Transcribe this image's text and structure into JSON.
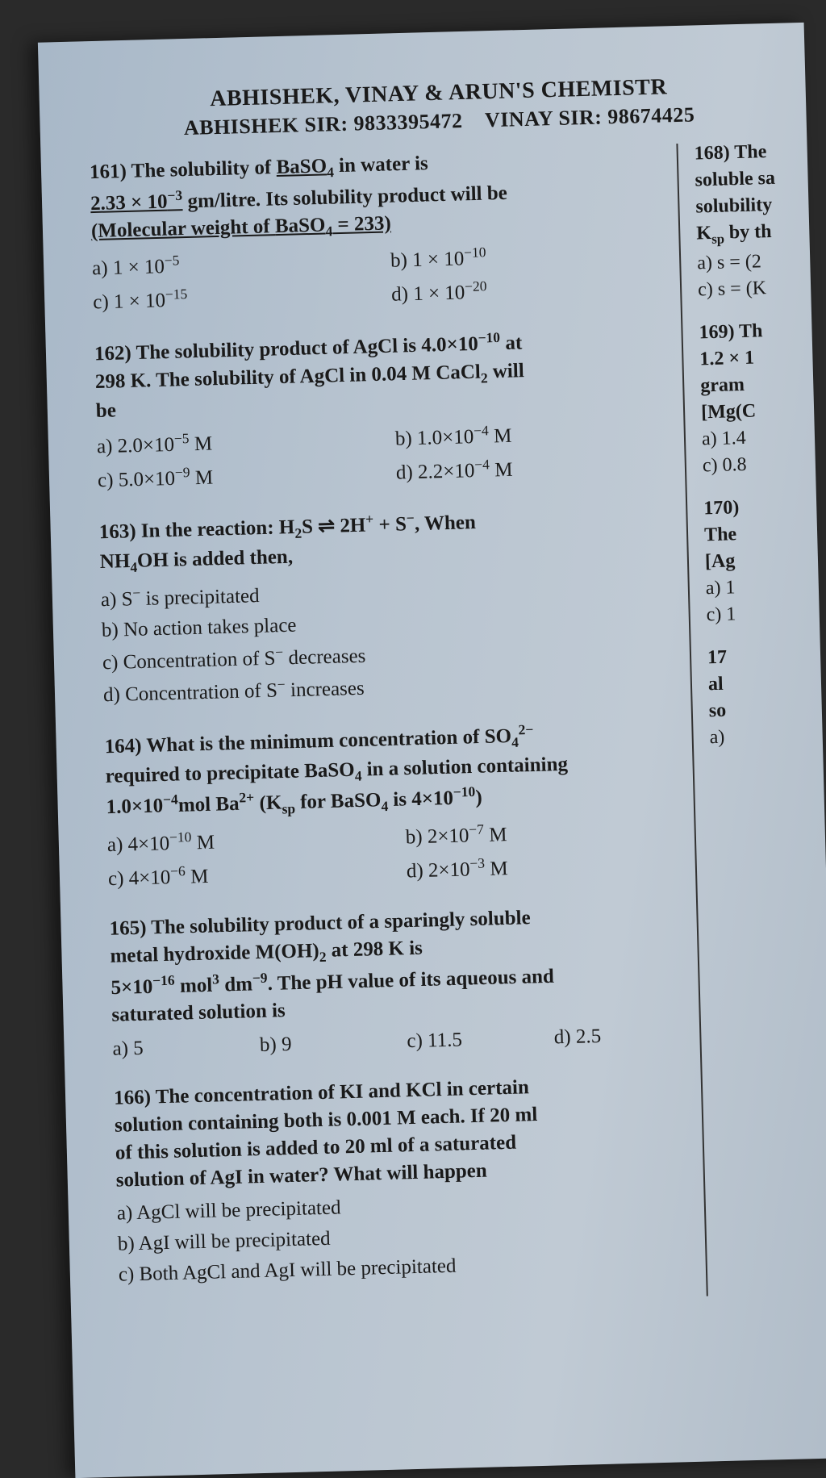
{
  "header": {
    "line1": "ABHISHEK, VINAY & ARUN'S CHEMISTR",
    "line2_a": "ABHISHEK SIR: 9833395472",
    "line2_b": "VINAY SIR: 98674425"
  },
  "q161": {
    "num": "161)",
    "stem_a": "The solubility of ",
    "stem_baso4": "BaSO",
    "stem_b": " in water is",
    "stem_c": "2.33 × 10",
    "stem_c_exp": "−3",
    "stem_d": " gm/litre. Its solubility product will be",
    "stem_e": "(Molecular weight of ",
    "stem_e2": "BaSO",
    "stem_e3": " = 233)",
    "a": "a) 1 × 10",
    "a_exp": "−5",
    "b": "b) 1 × 10",
    "b_exp": "−10",
    "c": "c) 1 × 10",
    "c_exp": "−15",
    "d": "d) 1 × 10",
    "d_exp": "−20"
  },
  "q162": {
    "num": "162)",
    "stem_a": "The solubility product of AgCl is 4.0×10",
    "stem_a_exp": "−10",
    "stem_a2": " at",
    "stem_b": "298 K. The solubility of AgCl in 0.04 M CaCl",
    "stem_b_sub": "2",
    "stem_b2": " will",
    "stem_c": "be",
    "a": "a) 2.0×10",
    "a_exp": "−5",
    "a_unit": " M",
    "b": "b) 1.0×10",
    "b_exp": "−4",
    "b_unit": " M",
    "c": "c) 5.0×10",
    "c_exp": "−9",
    "c_unit": " M",
    "d": "d) 2.2×10",
    "d_exp": "−4",
    "d_unit": " M"
  },
  "q163": {
    "num": "163)",
    "stem_a": "In the reaction: H",
    "stem_b": "S ",
    "arrow": "⇌",
    "stem_c": " 2H",
    "stem_d": " + S",
    "stem_e": ", When",
    "stem_f": "NH",
    "stem_g": "OH is added then,",
    "a": "a) S",
    "a2": " is precipitated",
    "b": "b) No action takes place",
    "c": "c) Concentration of S",
    "c2": " decreases",
    "d": "d) Concentration of S",
    "d2": " increases"
  },
  "q164": {
    "num": "164)",
    "stem_a": "What is the minimum concentration of SO",
    "stem_b": "required to precipitate BaSO",
    "stem_b2": " in a solution containing",
    "stem_c": "1.0×10",
    "stem_c_exp": "−4",
    "stem_c2": "mol Ba",
    "stem_c3": " (K",
    "stem_c4": " for BaSO",
    "stem_c5": " is 4×10",
    "stem_c5_exp": "−10",
    "stem_c6": ")",
    "a": "a) 4×10",
    "a_exp": "−10",
    "a_unit": " M",
    "b": "b) 2×10",
    "b_exp": "−7",
    "b_unit": " M",
    "c": "c) 4×10",
    "c_exp": "−6",
    "c_unit": " M",
    "d": "d) 2×10",
    "d_exp": "−3",
    "d_unit": " M"
  },
  "q165": {
    "num": "165)",
    "stem_a": "The solubility product of a sparingly soluble",
    "stem_b": "metal hydroxide M(OH)",
    "stem_b2": " at 298 K is",
    "stem_c": "5×10",
    "stem_c_exp": "−16",
    "stem_c2": " mol",
    "stem_c3": " dm",
    "stem_c3_exp": "−9",
    "stem_c4": ". The pH value of its aqueous and",
    "stem_d": "saturated solution is",
    "a": "a) 5",
    "b": "b) 9",
    "c": "c) 11.5",
    "d": "d) 2.5"
  },
  "q166": {
    "num": "166)",
    "stem_a": "The concentration of KI and KCl in certain",
    "stem_b": "solution containing both is 0.001 M each. If 20 ml",
    "stem_c": "of this solution is added to 20 ml of a saturated",
    "stem_d": "solution of AgI in water? What will happen",
    "a": "a) AgCl will be precipitated",
    "b": "b) AgI will be precipitated",
    "c": "c) Both AgCl and AgI will be precipitated"
  },
  "right": {
    "r168_a": "168) The",
    "r168_b": "soluble sa",
    "r168_c": "solubility",
    "r168_d": "K",
    "r168_d2": " by th",
    "r168_e": "a) s = (2",
    "r168_f": "c) s = (K",
    "r169_a": "169) Th",
    "r169_b": "1.2 × 1",
    "r169_c": "gram ",
    "r169_d": "[Mg(C",
    "r169_e": "a) 1.4",
    "r169_f": "c) 0.8",
    "r170_a": "170)",
    "r170_b": "The",
    "r170_c": "[Ag",
    "r170_d": "a) 1",
    "r170_e": "c) 1",
    "r17_a": "17",
    "r17_b": "al",
    "r17_c": "so",
    "r17_d": "a)"
  }
}
